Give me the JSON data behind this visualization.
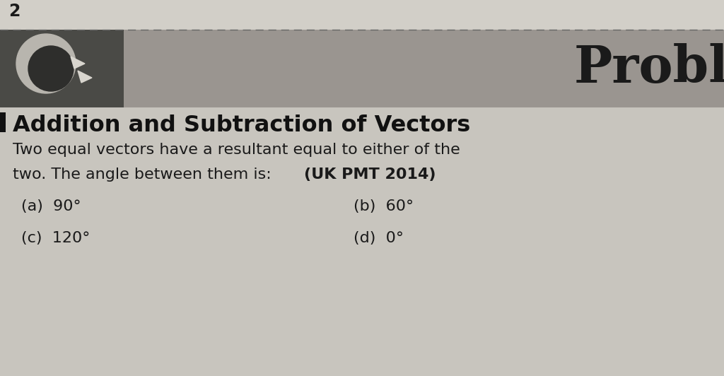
{
  "page_bg": "#c8c5be",
  "header_band_color": "#9a9590",
  "header_photo_color": "#4a4a46",
  "header_text": "Probl",
  "header_text_color": "#1a1a1a",
  "section_title": "Addition and Subtraction of Vectors",
  "section_title_color": "#111111",
  "question_text_line1": "Two equal vectors have a resultant equal to either of the",
  "question_text_line2": "two. The angle between them is:",
  "source_text": "(UK PMT 2014)",
  "option_a": "(a)  90°",
  "option_b": "(b)  60°",
  "option_c": "(c)  120°",
  "option_d": "(d)  0°",
  "number_text": "2",
  "text_color": "#1a1a1a",
  "dashed_line_color": "#666666",
  "bullet_color": "#111111",
  "photo_circle_color": "#b0b0a8",
  "photo_dark_color": "#2a2a28"
}
